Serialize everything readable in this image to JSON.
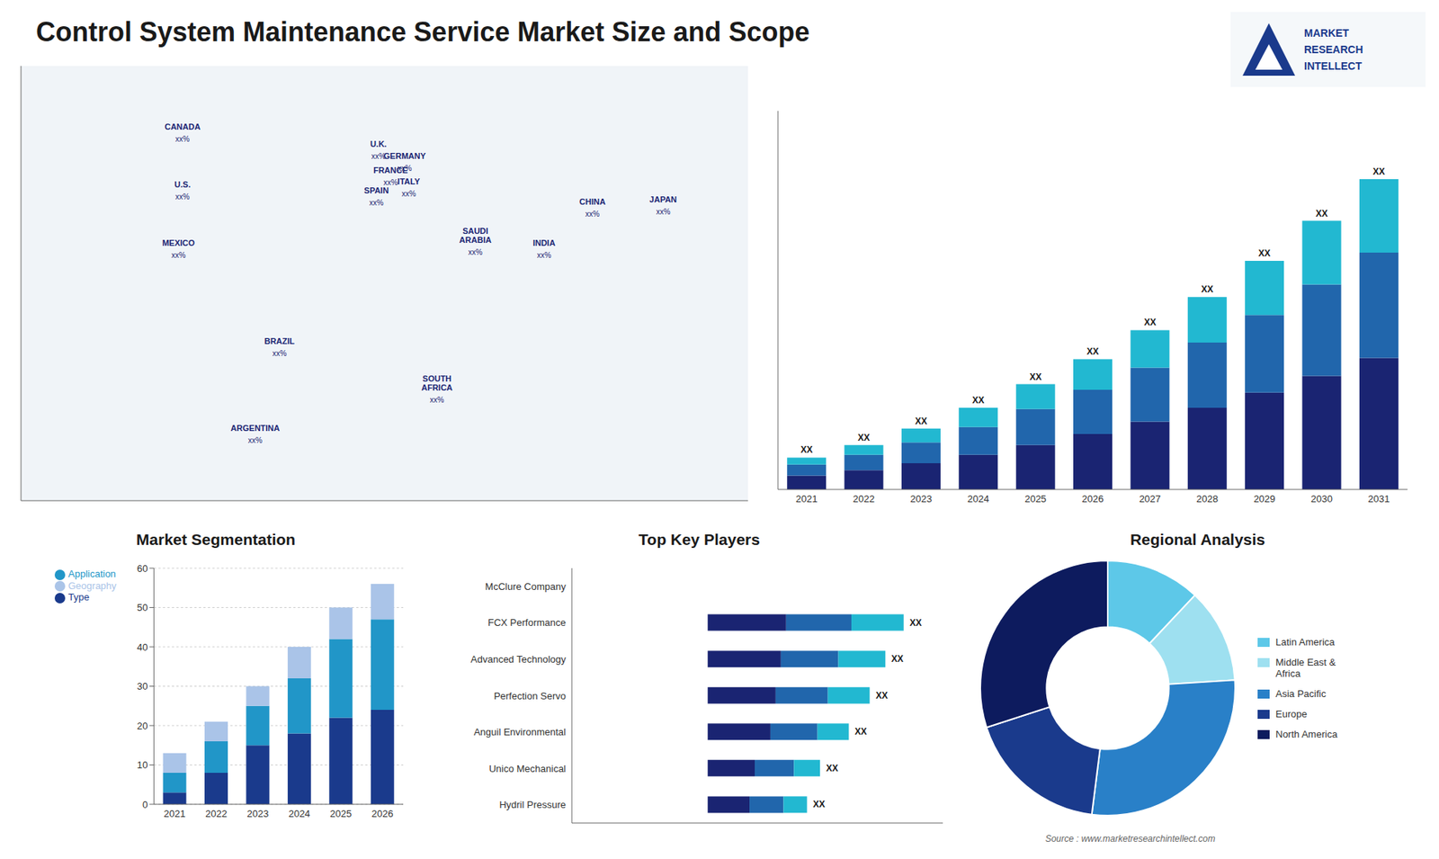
{
  "title": "Control System Maintenance Service Market Size and Scope",
  "annotations": [
    "Source : www.marketresearchintellect.com",
    "MARKET",
    "RESEARCH",
    "INTELLECT"
  ],
  "chart_data": [
    {
      "type": "scatter",
      "xlim": [
        -180,
        180
      ],
      "ylim": [
        -65,
        85
      ],
      "xticks": [],
      "yticks": [],
      "tick_labels": false,
      "annotations": [
        {
          "text": "CANADA",
          "sub": "xx%",
          "x": -100,
          "y": 62
        },
        {
          "text": "U.S.",
          "sub": "xx%",
          "x": -100,
          "y": 42
        },
        {
          "text": "MEXICO",
          "sub": "xx%",
          "x": -102,
          "y": 22
        },
        {
          "text": "BRAZIL",
          "sub": "xx%",
          "x": -52,
          "y": -12
        },
        {
          "text": "ARGENTINA",
          "sub": "xx%",
          "x": -64,
          "y": -42
        },
        {
          "text": "U.K.",
          "sub": "xx%",
          "x": -3,
          "y": 56
        },
        {
          "text": "FRANCE",
          "sub": "xx%",
          "x": 3,
          "y": 47
        },
        {
          "text": "SPAIN",
          "sub": "xx%",
          "x": -4,
          "y": 40
        },
        {
          "text": "GERMANY",
          "sub": "xx%",
          "x": 10,
          "y": 52
        },
        {
          "text": "ITALY",
          "sub": "xx%",
          "x": 12,
          "y": 43
        },
        {
          "text": "SOUTH\nAFRICA",
          "sub": "xx%",
          "x": 26,
          "y": -28
        },
        {
          "text": "SAUDI\nARABIA",
          "sub": "xx%",
          "x": 45,
          "y": 23
        },
        {
          "text": "CHINA",
          "sub": "xx%",
          "x": 103,
          "y": 36
        },
        {
          "text": "INDIA",
          "sub": "xx%",
          "x": 79,
          "y": 22
        },
        {
          "text": "JAPAN",
          "sub": "xx%",
          "x": 138,
          "y": 37
        }
      ]
    },
    {
      "type": "bar",
      "stacked": true,
      "categories": [
        "2021",
        "2022",
        "2023",
        "2024",
        "2025",
        "2026",
        "2027",
        "2028",
        "2029",
        "2030",
        "2031"
      ],
      "series": [
        {
          "color": "#1a2472",
          "values": [
            1.0,
            1.4,
            1.9,
            2.5,
            3.2,
            4.0,
            4.9,
            5.9,
            7.0,
            8.2,
            9.5
          ]
        },
        {
          "color": "#2166ac",
          "values": [
            0.8,
            1.1,
            1.5,
            2.0,
            2.6,
            3.2,
            3.9,
            4.7,
            5.6,
            6.6,
            7.6
          ]
        },
        {
          "color": "#22b8d1",
          "values": [
            0.5,
            0.7,
            1.0,
            1.4,
            1.8,
            2.2,
            2.7,
            3.3,
            3.9,
            4.6,
            5.3
          ]
        }
      ],
      "ylim": [
        0,
        27.328
      ],
      "yticks": [],
      "tick_labels": "x",
      "annotations": [
        {
          "text": "XX",
          "x": "2021"
        },
        {
          "text": "XX",
          "x": "2022"
        },
        {
          "text": "XX",
          "x": "2023"
        },
        {
          "text": "XX",
          "x": "2024"
        },
        {
          "text": "XX",
          "x": "2025"
        },
        {
          "text": "XX",
          "x": "2026"
        },
        {
          "text": "XX",
          "x": "2027"
        },
        {
          "text": "XX",
          "x": "2028"
        },
        {
          "text": "XX",
          "x": "2029"
        },
        {
          "text": "XX",
          "x": "2030"
        },
        {
          "text": "XX",
          "x": "2031"
        }
      ]
    },
    {
      "type": "bar",
      "title": "Market Segmentation",
      "stacked": true,
      "categories": [
        "2021",
        "2022",
        "2023",
        "2024",
        "2025",
        "2026"
      ],
      "series": [
        {
          "name": "Type",
          "color": "#1a3a8c",
          "values": [
            3,
            8,
            15,
            18,
            22,
            24
          ]
        },
        {
          "name": "Application",
          "color": "#2196c8",
          "values": [
            5,
            8,
            10,
            14,
            20,
            23
          ]
        },
        {
          "name": "Geography",
          "color": "#aac4e8",
          "values": [
            5,
            5,
            5,
            8,
            8,
            9
          ]
        }
      ],
      "ylim": [
        0,
        60
      ],
      "yticks": [
        0,
        10,
        20,
        30,
        40,
        50,
        60
      ],
      "grid": true,
      "legend": "upper left"
    },
    {
      "type": "bar",
      "title": "Top Key Players",
      "orientation": "horizontal",
      "stacked": true,
      "categories": [
        "McClure Company",
        "FCX Performance",
        "Advanced Technology",
        "Perfection Servo",
        "Anguil Environmental",
        "Unico Mechanical",
        "Hydril Pressure"
      ],
      "series": [
        {
          "color": "#1a2472",
          "values": [
            0,
            30,
            28,
            26,
            24,
            18,
            16
          ]
        },
        {
          "color": "#2166ac",
          "values": [
            0,
            25,
            22,
            20,
            18,
            15,
            13
          ]
        },
        {
          "color": "#22b8d1",
          "values": [
            0,
            20,
            18,
            16,
            12,
            10,
            9
          ]
        }
      ],
      "xlim": [
        -52,
        90
      ],
      "xticks": [],
      "tick_labels": "y",
      "annotations": [
        {
          "text": "XX",
          "y": "FCX Performance"
        },
        {
          "text": "XX",
          "y": "Advanced Technology"
        },
        {
          "text": "XX",
          "y": "Perfection Servo"
        },
        {
          "text": "XX",
          "y": "Anguil Environmental"
        },
        {
          "text": "XX",
          "y": "Unico Mechanical"
        },
        {
          "text": "XX",
          "y": "Hydril Pressure"
        }
      ]
    },
    {
      "type": "pie",
      "title": "Regional Analysis",
      "categories": [
        "Latin America",
        "Middle East &\nAfrica",
        "Asia Pacific",
        "Europe",
        "North America"
      ],
      "values": [
        12,
        12,
        28,
        18,
        30
      ],
      "colors": [
        "#5dc8e8",
        "#9ee0f0",
        "#2980c8",
        "#1a3a8c",
        "#0d1b5e"
      ],
      "legend": "right"
    }
  ]
}
